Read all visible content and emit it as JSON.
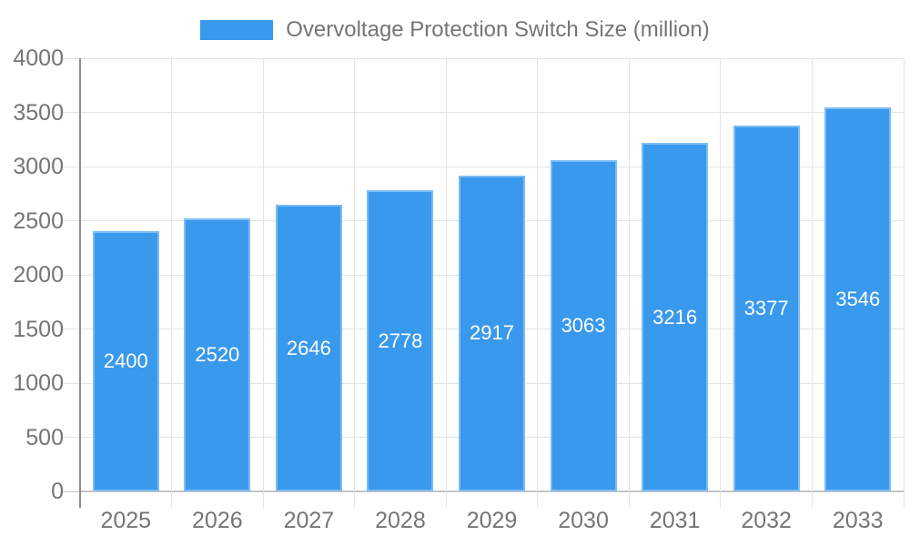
{
  "chart_data": {
    "type": "bar",
    "title": "Overvoltage Protection Switch Size (million)",
    "categories": [
      "2025",
      "2026",
      "2027",
      "2028",
      "2029",
      "2030",
      "2031",
      "2032",
      "2033"
    ],
    "values": [
      2400,
      2520,
      2646,
      2778,
      2917,
      3063,
      3216,
      3377,
      3546
    ],
    "bar_value_labels": [
      "2400",
      "2520",
      "2646",
      "2778",
      "2917",
      "3063",
      "3216",
      "3377",
      "3546"
    ],
    "ytick_labels": [
      "0",
      "500",
      "1000",
      "1500",
      "2000",
      "2500",
      "3000",
      "3500",
      "4000"
    ],
    "xlabel": "",
    "ylabel": "",
    "ylim": [
      0,
      4000
    ],
    "ytick_step": 500,
    "grid": true,
    "legend_position": "top-center",
    "colors": {
      "bar": "#3999ED",
      "bar_label": "#ffffff",
      "axis_text": "#757575",
      "gridline": "#E4E4E4",
      "axis_line": "#8C8C8C",
      "baseline": "#C6C6C6",
      "background": "#ffffff"
    }
  }
}
